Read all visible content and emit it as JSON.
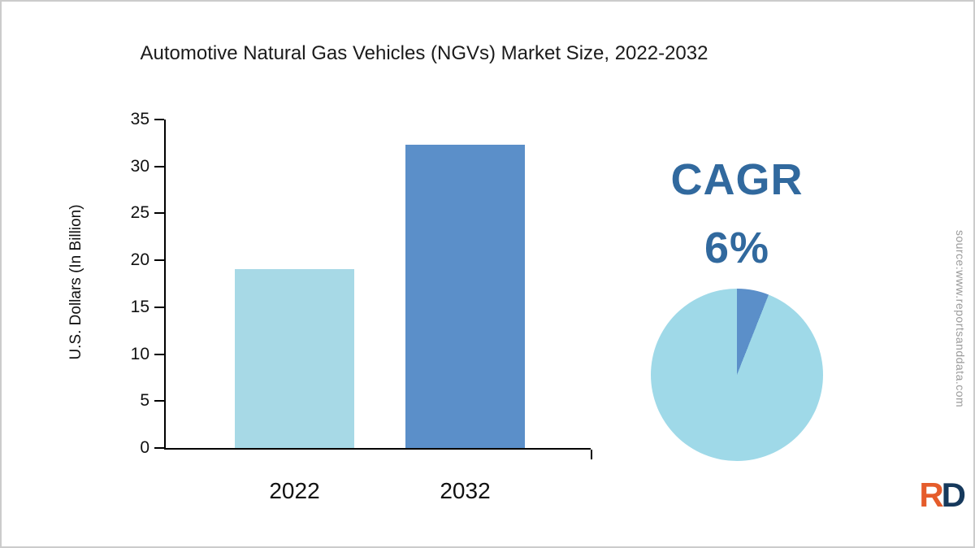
{
  "title": "Automotive Natural Gas Vehicles (NGVs) Market Size, 2022-2032",
  "chart_data": {
    "type": "bar",
    "title": "Automotive Natural Gas Vehicles (NGVs) Market Size, 2022-2032",
    "categories": [
      "2022",
      "2032"
    ],
    "values": [
      19.1,
      32.3
    ],
    "xlabel": "",
    "ylabel": "U.S. Dollars (In Billion)",
    "ylim": [
      0,
      35
    ],
    "yticks": [
      0,
      5,
      10,
      15,
      20,
      25,
      30,
      35
    ],
    "grid": false,
    "legend": "none",
    "bar_colors": [
      "#a7d9e6",
      "#5b8fc9"
    ],
    "bar_layout": {
      "lefts": [
        85,
        295
      ],
      "width": 147
    }
  },
  "cagr": {
    "label": "CAGR",
    "value": "6%",
    "percent": 6
  },
  "pie": {
    "slice_percent": 6,
    "slice_color": "#5b8fc9",
    "base_color": "#9fd9e8"
  },
  "source_text": "source:www.reportsanddata.com",
  "logo": {
    "letter_r": "R",
    "letter_d": "D"
  },
  "colors": {
    "cagr_text": "#31699e",
    "axis": "#000000",
    "source_text": "#9a9a9a",
    "logo_r": "#e55c2b",
    "logo_d": "#16395c"
  }
}
